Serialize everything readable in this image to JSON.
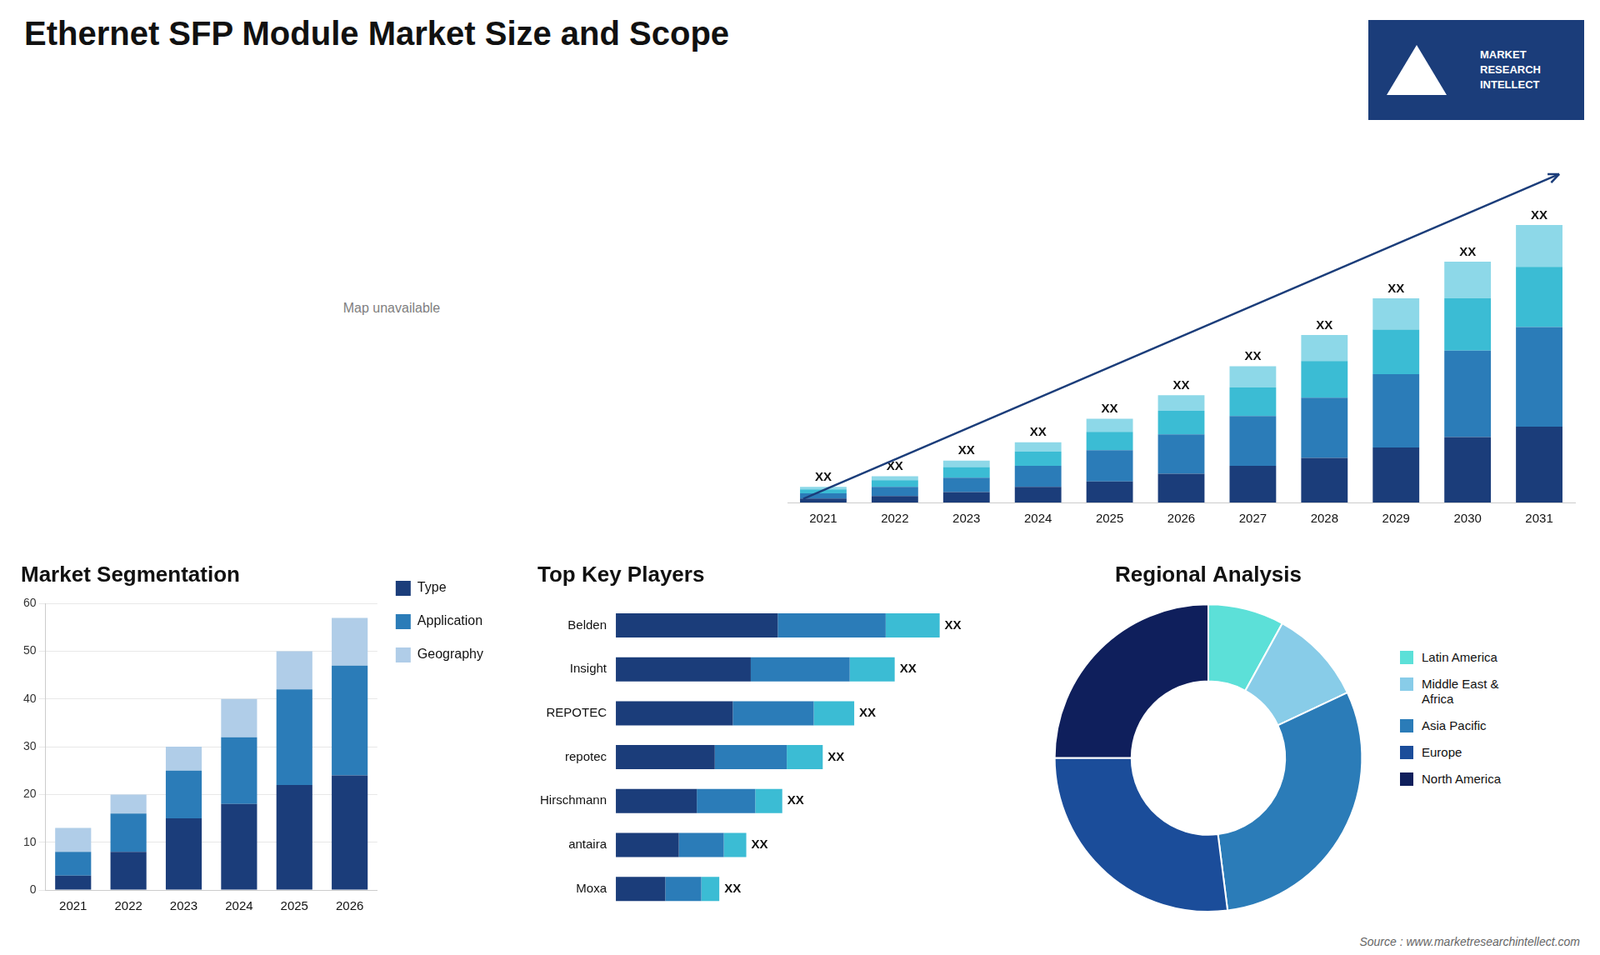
{
  "title": "Ethernet SFP Module Market Size and Scope",
  "annotations": [
    "Map unavailable",
    "MARKET\nRESEARCH\nINTELLECT",
    "Source : www.marketresearchintellect.com"
  ],
  "chart_data": [
    {
      "type": "bar",
      "stacked": true,
      "categories": [
        "2021",
        "2022",
        "2023",
        "2024",
        "2025",
        "2026",
        "2027",
        "2028",
        "2029",
        "2030",
        "2031"
      ],
      "series": [
        {
          "color": "#1b3d7a",
          "values": [
            1.5,
            2.5,
            4,
            6,
            8,
            11,
            14,
            17,
            21,
            25,
            29
          ]
        },
        {
          "color": "#2b7cb8",
          "values": [
            2,
            3.5,
            5.5,
            8,
            12,
            15,
            19,
            23,
            28,
            33,
            38
          ]
        },
        {
          "color": "#3bbcd4",
          "values": [
            1.5,
            2.5,
            4,
            5.5,
            7,
            9,
            11,
            14,
            17,
            20,
            23
          ]
        },
        {
          "color": "#8dd8e8",
          "values": [
            1,
            1.5,
            2.5,
            3.5,
            5,
            6,
            8,
            10,
            12,
            14,
            16
          ]
        }
      ],
      "ylim": [
        0,
        137.8
      ],
      "tick_labels": "x",
      "grid": false,
      "annotations": [
        "XX",
        "XX",
        "XX",
        "XX",
        "XX",
        "XX",
        "XX",
        "XX",
        "XX",
        "XX",
        "XX"
      ]
    },
    {
      "type": "bar",
      "title": "Market Segmentation",
      "stacked": true,
      "categories": [
        "2021",
        "2022",
        "2023",
        "2024",
        "2025",
        "2026"
      ],
      "series": [
        {
          "name": "Type",
          "color": "#1b3d7a",
          "values": [
            3,
            8,
            15,
            18,
            22,
            24
          ]
        },
        {
          "name": "Application",
          "color": "#2b7cb8",
          "values": [
            5,
            8,
            10,
            14,
            20,
            23
          ]
        },
        {
          "name": "Geography",
          "color": "#b0cde8",
          "values": [
            5,
            4,
            5,
            8,
            8,
            10
          ]
        }
      ],
      "ylim": [
        0,
        60
      ],
      "yticks": [
        0,
        10,
        20,
        30,
        40,
        50,
        60
      ],
      "grid": true,
      "legend": "right"
    },
    {
      "type": "bar",
      "title": "Top Key Players",
      "orientation": "horizontal",
      "stacked": true,
      "categories": [
        "Belden",
        "Insight",
        "REPOTEC",
        "repotec",
        "Hirschmann",
        "antaira",
        "Moxa"
      ],
      "series": [
        {
          "color": "#1b3d7a",
          "values": [
            0.36,
            0.3,
            0.26,
            0.22,
            0.18,
            0.14,
            0.11
          ]
        },
        {
          "color": "#2b7cb8",
          "values": [
            0.24,
            0.22,
            0.18,
            0.16,
            0.13,
            0.1,
            0.08
          ]
        },
        {
          "color": "#3bbcd4",
          "values": [
            0.12,
            0.1,
            0.09,
            0.08,
            0.06,
            0.05,
            0.04
          ]
        }
      ],
      "xlim": [
        0,
        0.78
      ],
      "tick_labels": "y",
      "grid": false,
      "annotations": [
        "XX",
        "XX",
        "XX",
        "XX",
        "XX",
        "XX",
        "XX"
      ]
    },
    {
      "type": "doughnut",
      "title": "Regional Analysis",
      "categories": [
        "Latin America",
        "Middle East &\nAfrica",
        "Asia Pacific",
        "Europe",
        "North America"
      ],
      "values": [
        8,
        10,
        30,
        27,
        25
      ],
      "colors": [
        "#5ce0d8",
        "#88cce8",
        "#2b7cb8",
        "#1b4d9a",
        "#0f1f5c"
      ],
      "legend": "right"
    }
  ]
}
